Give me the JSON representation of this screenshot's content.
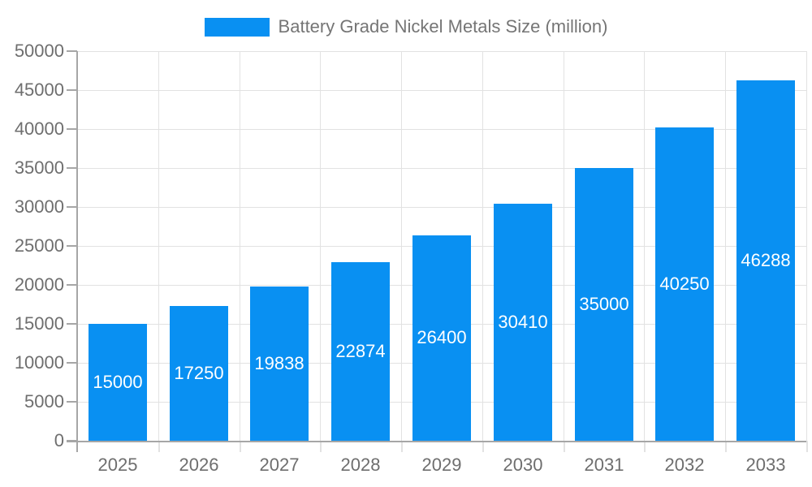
{
  "legend": {
    "label": "Battery Grade Nickel Metals Size (million)"
  },
  "chart_data": {
    "type": "bar",
    "title": "Battery Grade Nickel Metals Size (million)",
    "series_name": "Battery Grade Nickel Metals Size (million)",
    "categories": [
      "2025",
      "2026",
      "2027",
      "2028",
      "2029",
      "2030",
      "2031",
      "2032",
      "2033"
    ],
    "values": [
      15000,
      17250,
      19838,
      22874,
      26400,
      30410,
      35000,
      40250,
      46288
    ],
    "xlabel": "",
    "ylabel": "",
    "ylim": [
      0,
      50000
    ],
    "ytick_step": 5000,
    "yticks": [
      0,
      5000,
      10000,
      15000,
      20000,
      25000,
      30000,
      35000,
      40000,
      45000,
      50000
    ],
    "grid": true,
    "legend_position": "top",
    "bar_label_position": "inside-center",
    "colors": {
      "bar": "#0990f2",
      "bar_label": "#ffffff",
      "gridline": "#e2e2e2",
      "axis": "#a6a6a6",
      "axis_label": "#6e6e6e",
      "legend_text": "#757575",
      "background": "#ffffff"
    }
  }
}
